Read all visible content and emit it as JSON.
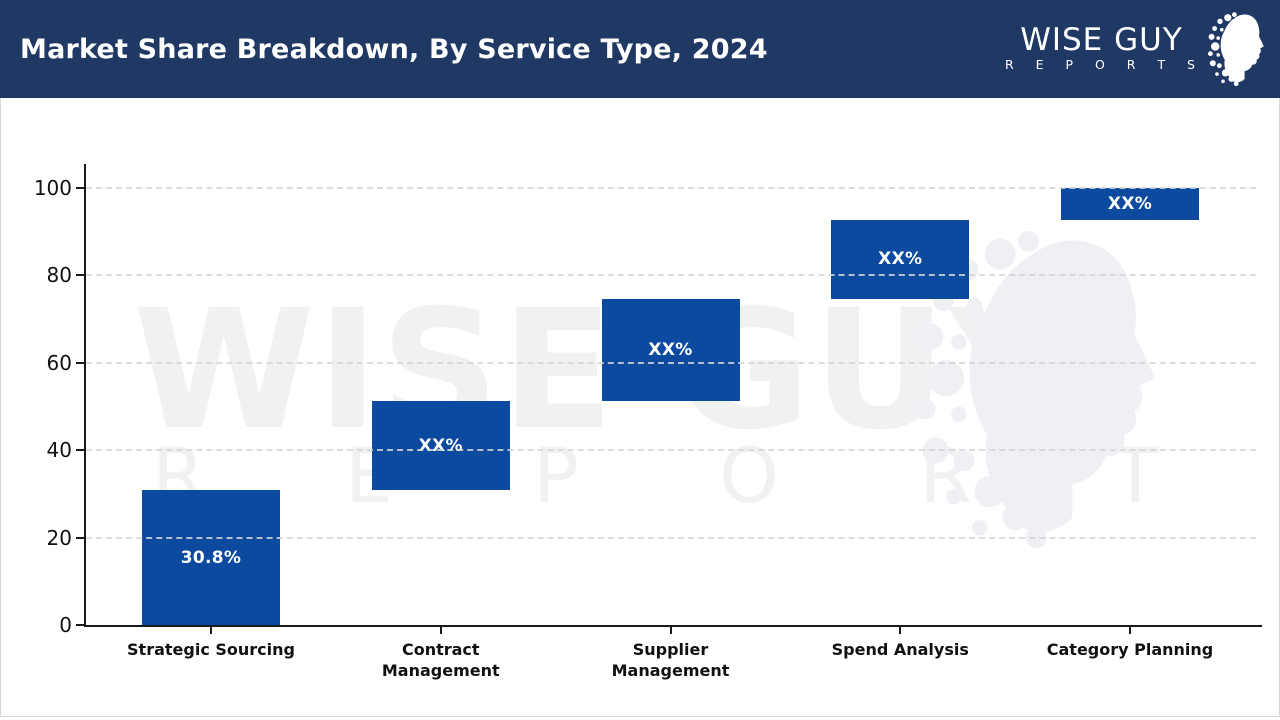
{
  "header": {
    "title": "Market Share Breakdown, By Service Type, 2024",
    "logo": {
      "primary": "WISE GUY",
      "secondary": "R E P O R T S",
      "icon": "dotted-head-profile"
    }
  },
  "watermark": {
    "primary": "WISE GUY",
    "secondary": "R E P O R T S",
    "icon": "dotted-head-profile"
  },
  "colors": {
    "header_bg": "#1f3864",
    "bar": "#0b4a9e",
    "grid": "#d6d6d6",
    "axis": "#1a1a1a",
    "watermark": "#f0f1f3"
  },
  "chart_data": {
    "type": "bar",
    "subtype": "waterfall",
    "title": "Market Share Breakdown, By Service Type, 2024",
    "categories": [
      "Strategic Sourcing",
      "Contract Management",
      "Supplier Management",
      "Spend Analysis",
      "Category Planning"
    ],
    "category_label_lines": [
      [
        "Strategic Sourcing"
      ],
      [
        "Contract",
        "Management"
      ],
      [
        "Supplier",
        "Management"
      ],
      [
        "Spend Analysis"
      ],
      [
        "Category Planning"
      ]
    ],
    "values": [
      30.8,
      20.4,
      23.3,
      18.1,
      7.4
    ],
    "segments": [
      {
        "start": 0,
        "end": 30.8,
        "label": "30.8%"
      },
      {
        "start": 30.8,
        "end": 51.2,
        "label": "XX%"
      },
      {
        "start": 51.2,
        "end": 74.5,
        "label": "XX%"
      },
      {
        "start": 74.5,
        "end": 92.6,
        "label": "XX%"
      },
      {
        "start": 92.6,
        "end": 100,
        "label": "XX%"
      }
    ],
    "xlabel": "",
    "ylabel": "",
    "ylim": [
      0,
      100
    ],
    "yticks": [
      0,
      20,
      40,
      60,
      80,
      100
    ],
    "grid": "horizontal-dashed",
    "legend": "none",
    "bar_color": "#0b4a9e"
  }
}
